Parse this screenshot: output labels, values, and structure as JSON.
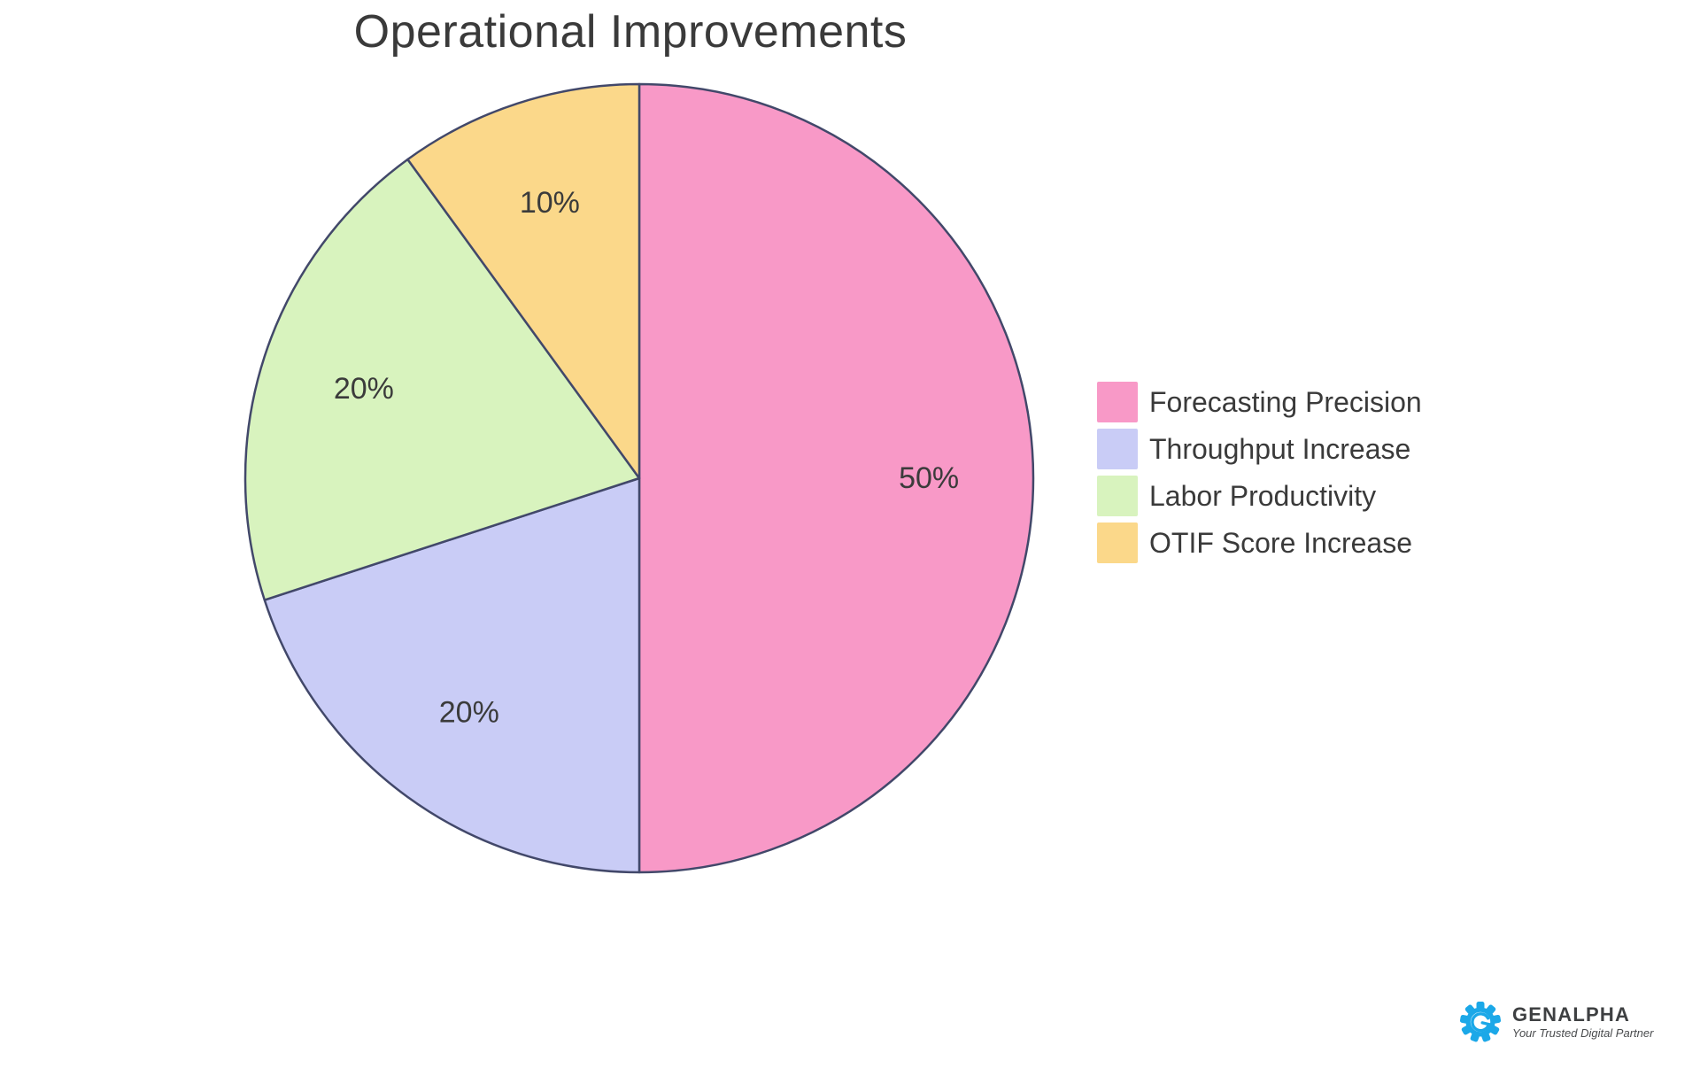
{
  "chart_data": {
    "type": "pie",
    "title": "Operational Improvements",
    "labels": [
      "Forecasting Precision",
      "Throughput Increase",
      "Labor Productivity",
      "OTIF Score Increase"
    ],
    "values": [
      50,
      20,
      20,
      10
    ],
    "unit": "%",
    "slice_value_labels": [
      "50%",
      "20%",
      "20%",
      "10%"
    ],
    "colors": [
      "#F899C7",
      "#C9CCF6",
      "#D8F3BE",
      "#FBD88A"
    ],
    "stroke_color": "#42486A",
    "start_angle": "12 o'clock",
    "direction": "clockwise",
    "legend_position": "right-middle",
    "label_color": "#3b3b3b"
  },
  "branding": {
    "name": "GENALPHA",
    "tagline": "Your Trusted Digital Partner",
    "logo_color": "#1BA8E8",
    "logo_icon": "gear-with-g"
  }
}
